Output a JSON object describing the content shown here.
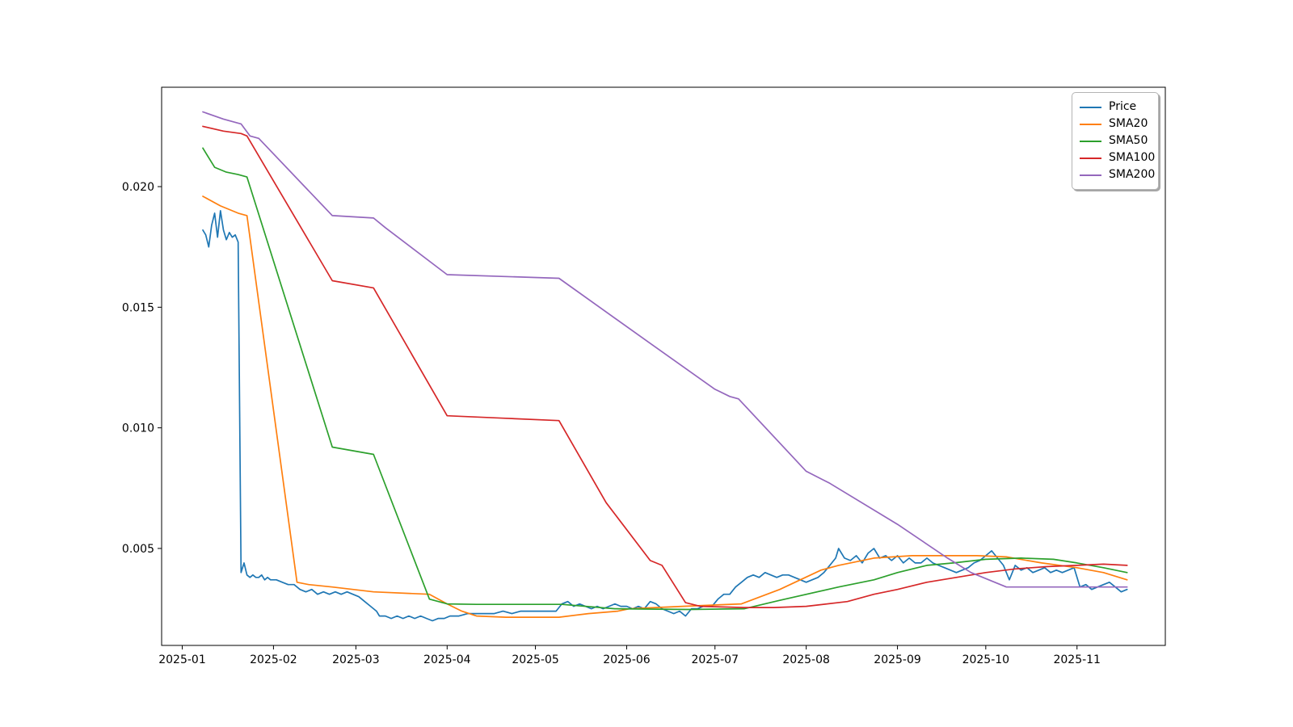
{
  "figure": {
    "background": "#ffffff",
    "axis_color": "#000000",
    "legend_border_color": "#b4b4b4"
  },
  "chart_data": {
    "type": "line",
    "title": "",
    "xlabel": "",
    "ylabel": "",
    "grid": false,
    "legend_position": "upper-right",
    "x_axis": {
      "unit": "days_since_2025-01-01",
      "range": [
        -7,
        334
      ],
      "ticks": [
        {
          "d": 0,
          "label": "2025-01"
        },
        {
          "d": 31,
          "label": "2025-02"
        },
        {
          "d": 59,
          "label": "2025-03"
        },
        {
          "d": 90,
          "label": "2025-04"
        },
        {
          "d": 120,
          "label": "2025-05"
        },
        {
          "d": 151,
          "label": "2025-06"
        },
        {
          "d": 181,
          "label": "2025-07"
        },
        {
          "d": 212,
          "label": "2025-08"
        },
        {
          "d": 243,
          "label": "2025-09"
        },
        {
          "d": 273,
          "label": "2025-10"
        },
        {
          "d": 304,
          "label": "2025-11"
        }
      ]
    },
    "y_axis": {
      "range": [
        0.00098,
        0.02412
      ],
      "ticks": [
        {
          "v": 0.005,
          "label": "0.005"
        },
        {
          "v": 0.01,
          "label": "0.010"
        },
        {
          "v": 0.015,
          "label": "0.015"
        },
        {
          "v": 0.02,
          "label": "0.020"
        }
      ]
    },
    "series": [
      {
        "name": "Price",
        "color": "#1f77b4",
        "points": [
          [
            7,
            0.0182
          ],
          [
            8,
            0.018
          ],
          [
            9,
            0.0175
          ],
          [
            10,
            0.0184
          ],
          [
            11,
            0.0189
          ],
          [
            12,
            0.0179
          ],
          [
            13,
            0.019
          ],
          [
            14,
            0.0182
          ],
          [
            15,
            0.0178
          ],
          [
            16,
            0.0181
          ],
          [
            17,
            0.0179
          ],
          [
            18,
            0.018
          ],
          [
            19,
            0.0177
          ],
          [
            20,
            0.004
          ],
          [
            21,
            0.0044
          ],
          [
            22,
            0.0039
          ],
          [
            23,
            0.0038
          ],
          [
            24,
            0.0039
          ],
          [
            25,
            0.0038
          ],
          [
            26,
            0.0038
          ],
          [
            27,
            0.0039
          ],
          [
            28,
            0.0037
          ],
          [
            29,
            0.0038
          ],
          [
            30,
            0.0037
          ],
          [
            32,
            0.0037
          ],
          [
            34,
            0.0036
          ],
          [
            36,
            0.0035
          ],
          [
            38,
            0.0035
          ],
          [
            40,
            0.0033
          ],
          [
            42,
            0.0032
          ],
          [
            44,
            0.0033
          ],
          [
            46,
            0.0031
          ],
          [
            48,
            0.0032
          ],
          [
            50,
            0.0031
          ],
          [
            52,
            0.0032
          ],
          [
            54,
            0.0031
          ],
          [
            56,
            0.0032
          ],
          [
            58,
            0.0031
          ],
          [
            60,
            0.003
          ],
          [
            62,
            0.0028
          ],
          [
            64,
            0.0026
          ],
          [
            66,
            0.0024
          ],
          [
            67,
            0.0022
          ],
          [
            69,
            0.0022
          ],
          [
            71,
            0.0021
          ],
          [
            73,
            0.0022
          ],
          [
            75,
            0.0021
          ],
          [
            77,
            0.0022
          ],
          [
            79,
            0.0021
          ],
          [
            81,
            0.0022
          ],
          [
            83,
            0.0021
          ],
          [
            85,
            0.002
          ],
          [
            87,
            0.0021
          ],
          [
            89,
            0.0021
          ],
          [
            91,
            0.0022
          ],
          [
            94,
            0.0022
          ],
          [
            97,
            0.0023
          ],
          [
            100,
            0.0023
          ],
          [
            103,
            0.0023
          ],
          [
            106,
            0.0023
          ],
          [
            109,
            0.0024
          ],
          [
            112,
            0.0023
          ],
          [
            115,
            0.0024
          ],
          [
            118,
            0.0024
          ],
          [
            121,
            0.0024
          ],
          [
            124,
            0.0024
          ],
          [
            127,
            0.0024
          ],
          [
            129,
            0.0027
          ],
          [
            131,
            0.0028
          ],
          [
            133,
            0.0026
          ],
          [
            135,
            0.0027
          ],
          [
            137,
            0.0026
          ],
          [
            139,
            0.0025
          ],
          [
            141,
            0.0026
          ],
          [
            143,
            0.0025
          ],
          [
            145,
            0.0026
          ],
          [
            147,
            0.0027
          ],
          [
            149,
            0.0026
          ],
          [
            151,
            0.0026
          ],
          [
            153,
            0.0025
          ],
          [
            155,
            0.0026
          ],
          [
            157,
            0.0025
          ],
          [
            159,
            0.0028
          ],
          [
            161,
            0.0027
          ],
          [
            163,
            0.0025
          ],
          [
            165,
            0.0024
          ],
          [
            167,
            0.0023
          ],
          [
            169,
            0.0024
          ],
          [
            171,
            0.0022
          ],
          [
            173,
            0.0025
          ],
          [
            175,
            0.0025
          ],
          [
            177,
            0.0026
          ],
          [
            180,
            0.0026
          ],
          [
            182,
            0.0029
          ],
          [
            184,
            0.0031
          ],
          [
            186,
            0.0031
          ],
          [
            188,
            0.0034
          ],
          [
            190,
            0.0036
          ],
          [
            192,
            0.0038
          ],
          [
            194,
            0.0039
          ],
          [
            196,
            0.0038
          ],
          [
            198,
            0.004
          ],
          [
            200,
            0.0039
          ],
          [
            202,
            0.0038
          ],
          [
            204,
            0.0039
          ],
          [
            206,
            0.0039
          ],
          [
            208,
            0.0038
          ],
          [
            210,
            0.0037
          ],
          [
            212,
            0.0036
          ],
          [
            214,
            0.0037
          ],
          [
            216,
            0.0038
          ],
          [
            218,
            0.004
          ],
          [
            220,
            0.0043
          ],
          [
            222,
            0.0046
          ],
          [
            223,
            0.005
          ],
          [
            225,
            0.0046
          ],
          [
            227,
            0.0045
          ],
          [
            229,
            0.0047
          ],
          [
            231,
            0.0044
          ],
          [
            233,
            0.0048
          ],
          [
            235,
            0.005
          ],
          [
            237,
            0.0046
          ],
          [
            239,
            0.0047
          ],
          [
            241,
            0.0045
          ],
          [
            243,
            0.0047
          ],
          [
            245,
            0.0044
          ],
          [
            247,
            0.0046
          ],
          [
            249,
            0.0044
          ],
          [
            251,
            0.0044
          ],
          [
            253,
            0.0046
          ],
          [
            255,
            0.0044
          ],
          [
            257,
            0.0043
          ],
          [
            259,
            0.0042
          ],
          [
            261,
            0.0041
          ],
          [
            263,
            0.004
          ],
          [
            265,
            0.0041
          ],
          [
            267,
            0.0042
          ],
          [
            269,
            0.0044
          ],
          [
            271,
            0.0045
          ],
          [
            273,
            0.0047
          ],
          [
            275,
            0.0049
          ],
          [
            277,
            0.0046
          ],
          [
            279,
            0.0043
          ],
          [
            281,
            0.0037
          ],
          [
            283,
            0.0043
          ],
          [
            285,
            0.0041
          ],
          [
            287,
            0.0042
          ],
          [
            289,
            0.004
          ],
          [
            291,
            0.0041
          ],
          [
            293,
            0.0042
          ],
          [
            295,
            0.004
          ],
          [
            297,
            0.0041
          ],
          [
            299,
            0.004
          ],
          [
            301,
            0.0041
          ],
          [
            303,
            0.0042
          ],
          [
            305,
            0.0034
          ],
          [
            307,
            0.0035
          ],
          [
            309,
            0.0033
          ],
          [
            311,
            0.0034
          ],
          [
            313,
            0.0035
          ],
          [
            315,
            0.0036
          ],
          [
            317,
            0.0034
          ],
          [
            319,
            0.0032
          ],
          [
            321,
            0.0033
          ]
        ]
      },
      {
        "name": "SMA20",
        "color": "#ff7f0e",
        "points": [
          [
            7,
            0.0196
          ],
          [
            13,
            0.0192
          ],
          [
            19,
            0.0189
          ],
          [
            22,
            0.0188
          ],
          [
            39,
            0.0036
          ],
          [
            43,
            0.0035
          ],
          [
            51,
            0.0034
          ],
          [
            65,
            0.0032
          ],
          [
            84,
            0.0031
          ],
          [
            90,
            0.0027
          ],
          [
            95,
            0.0024
          ],
          [
            100,
            0.0022
          ],
          [
            110,
            0.00215
          ],
          [
            128,
            0.00215
          ],
          [
            138,
            0.0023
          ],
          [
            148,
            0.0024
          ],
          [
            152,
            0.0025
          ],
          [
            170,
            0.0026
          ],
          [
            190,
            0.0027
          ],
          [
            203,
            0.0033
          ],
          [
            217,
            0.0041
          ],
          [
            223,
            0.0043
          ],
          [
            235,
            0.0046
          ],
          [
            248,
            0.0047
          ],
          [
            270,
            0.0047
          ],
          [
            280,
            0.00465
          ],
          [
            292,
            0.0044
          ],
          [
            304,
            0.0042
          ],
          [
            313,
            0.004
          ],
          [
            321,
            0.0037
          ]
        ]
      },
      {
        "name": "SMA50",
        "color": "#2ca02c",
        "points": [
          [
            7,
            0.0216
          ],
          [
            11,
            0.0208
          ],
          [
            15,
            0.0206
          ],
          [
            19,
            0.0205
          ],
          [
            22,
            0.0204
          ],
          [
            51,
            0.0092
          ],
          [
            65,
            0.0089
          ],
          [
            84,
            0.0029
          ],
          [
            90,
            0.0027
          ],
          [
            100,
            0.00268
          ],
          [
            129,
            0.00268
          ],
          [
            147,
            0.0025
          ],
          [
            172,
            0.00247
          ],
          [
            191,
            0.0025
          ],
          [
            203,
            0.00285
          ],
          [
            223,
            0.0034
          ],
          [
            235,
            0.0037
          ],
          [
            243,
            0.004
          ],
          [
            253,
            0.0043
          ],
          [
            262,
            0.0044
          ],
          [
            273,
            0.00455
          ],
          [
            285,
            0.0046
          ],
          [
            296,
            0.00455
          ],
          [
            304,
            0.0044
          ],
          [
            313,
            0.0042
          ],
          [
            321,
            0.004
          ]
        ]
      },
      {
        "name": "SMA100",
        "color": "#d62728",
        "points": [
          [
            7,
            0.0225
          ],
          [
            14,
            0.0223
          ],
          [
            20,
            0.0222
          ],
          [
            22,
            0.0221
          ],
          [
            51,
            0.0161
          ],
          [
            65,
            0.0158
          ],
          [
            90,
            0.0105
          ],
          [
            109,
            0.0104
          ],
          [
            128,
            0.0103
          ],
          [
            144,
            0.0069
          ],
          [
            159,
            0.0045
          ],
          [
            163,
            0.0043
          ],
          [
            171,
            0.00275
          ],
          [
            176,
            0.0026
          ],
          [
            191,
            0.00255
          ],
          [
            201,
            0.00255
          ],
          [
            212,
            0.0026
          ],
          [
            226,
            0.0028
          ],
          [
            235,
            0.0031
          ],
          [
            243,
            0.0033
          ],
          [
            253,
            0.0036
          ],
          [
            263,
            0.0038
          ],
          [
            273,
            0.004
          ],
          [
            283,
            0.00415
          ],
          [
            294,
            0.00425
          ],
          [
            304,
            0.0043
          ],
          [
            313,
            0.00435
          ],
          [
            321,
            0.0043
          ]
        ]
      },
      {
        "name": "SMA200",
        "color": "#9467bd",
        "points": [
          [
            7,
            0.0231
          ],
          [
            14,
            0.0228
          ],
          [
            20,
            0.0226
          ],
          [
            23,
            0.0221
          ],
          [
            26,
            0.022
          ],
          [
            51,
            0.0188
          ],
          [
            65,
            0.0187
          ],
          [
            69,
            0.0183
          ],
          [
            90,
            0.01635
          ],
          [
            128,
            0.0162
          ],
          [
            159,
            0.0135
          ],
          [
            181,
            0.0116
          ],
          [
            186,
            0.0113
          ],
          [
            189,
            0.0112
          ],
          [
            212,
            0.0082
          ],
          [
            220,
            0.0077
          ],
          [
            243,
            0.006
          ],
          [
            260,
            0.0046
          ],
          [
            268,
            0.004
          ],
          [
            280,
            0.0034
          ],
          [
            321,
            0.0034
          ]
        ]
      }
    ]
  }
}
